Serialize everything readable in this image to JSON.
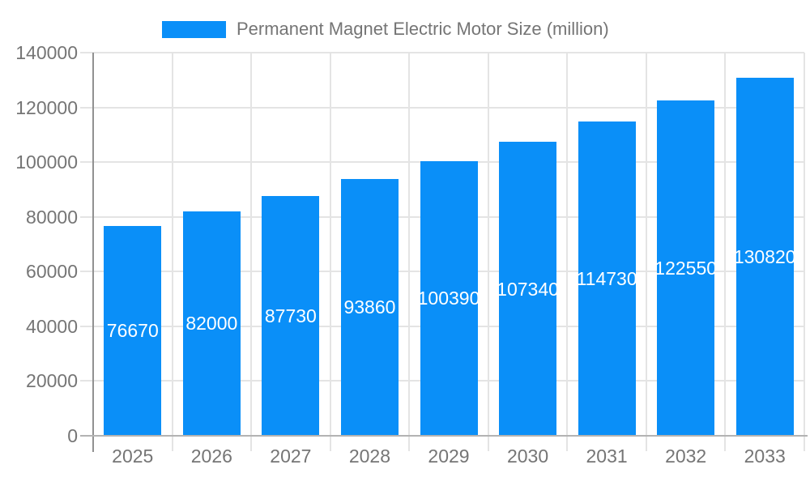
{
  "chart_data": {
    "type": "bar",
    "title": "Permanent Magnet Electric Motor Size (million)",
    "categories": [
      "2025",
      "2026",
      "2027",
      "2028",
      "2029",
      "2030",
      "2031",
      "2032",
      "2033"
    ],
    "series": [
      {
        "name": "Permanent Magnet Electric Motor Size (million)",
        "values": [
          76670,
          82000,
          87730,
          93860,
          100390,
          107340,
          114730,
          122550,
          130820
        ]
      }
    ],
    "bar_labels": [
      "76670",
      "82000",
      "87730",
      "93860",
      "100390",
      "107340",
      "114730",
      "122550",
      "130820"
    ],
    "xlabel": "",
    "ylabel": "",
    "ylim": [
      0,
      140000
    ],
    "yticks": [
      0,
      20000,
      40000,
      60000,
      80000,
      100000,
      120000,
      140000
    ],
    "ytick_labels": [
      "0",
      "20000",
      "40000",
      "60000",
      "80000",
      "100000",
      "120000",
      "140000"
    ],
    "grid": true,
    "legend_position": "top",
    "colors": {
      "bar": "#0a8ff8",
      "value_label": "#ffffff",
      "axis_text": "#757575",
      "gridline": "#e4e4e4",
      "y_axis_line": "#919191",
      "x_axis_line": "#b3b3b3",
      "background": "#ffffff"
    }
  }
}
